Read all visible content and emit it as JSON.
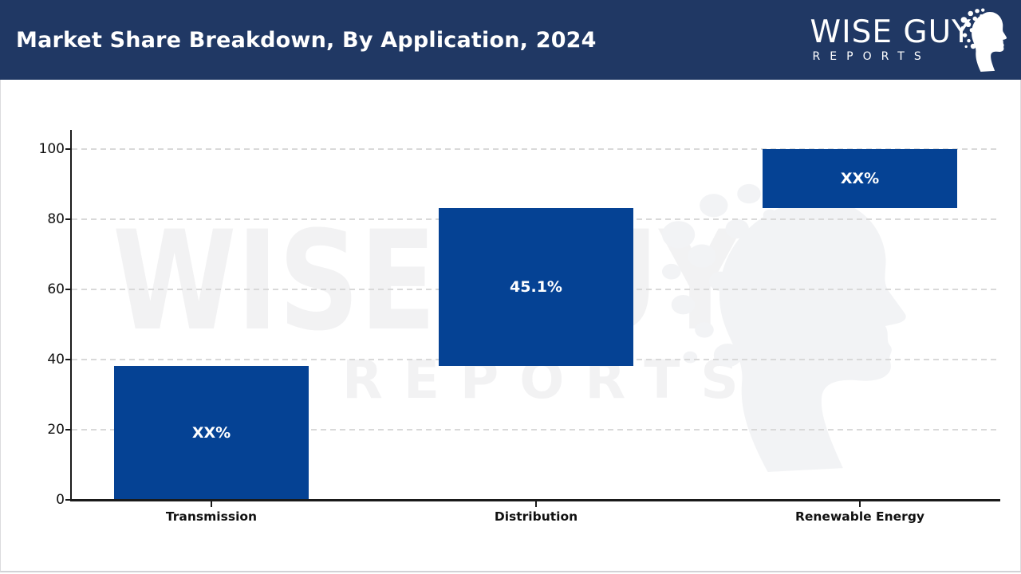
{
  "header": {
    "title": "Market Share Breakdown, By Application, 2024",
    "logo": {
      "wordmark": "WISE GUY",
      "subtext": "REPORTS"
    }
  },
  "watermark": {
    "line1": "WISE GUY",
    "line2": "REPORTS"
  },
  "chart_data": {
    "type": "bar",
    "subtype": "floating-waterfall-bars",
    "title": "Market Share Breakdown, By Application, 2024",
    "categories": [
      "Transmission",
      "Distribution",
      "Renewable Energy"
    ],
    "bars": [
      {
        "category": "Transmission",
        "start": 0,
        "end": 38.1,
        "value_label": "XX%"
      },
      {
        "category": "Distribution",
        "start": 38.1,
        "end": 83.2,
        "value_label": "45.1%"
      },
      {
        "category": "Renewable Energy",
        "start": 83.2,
        "end": 100,
        "value_label": "XX%"
      }
    ],
    "xlabel": "",
    "ylabel": "",
    "ylim": [
      0,
      100
    ],
    "yticks": [
      0,
      20,
      40,
      60,
      80,
      100
    ],
    "grid": "horizontal-dashed",
    "legend": "none",
    "colors": {
      "bar": "#054294",
      "header_bg": "#203864",
      "axis": "#1a1a1a",
      "gridline": "#d9d9d9",
      "bar_label_text": "#ffffff"
    }
  }
}
